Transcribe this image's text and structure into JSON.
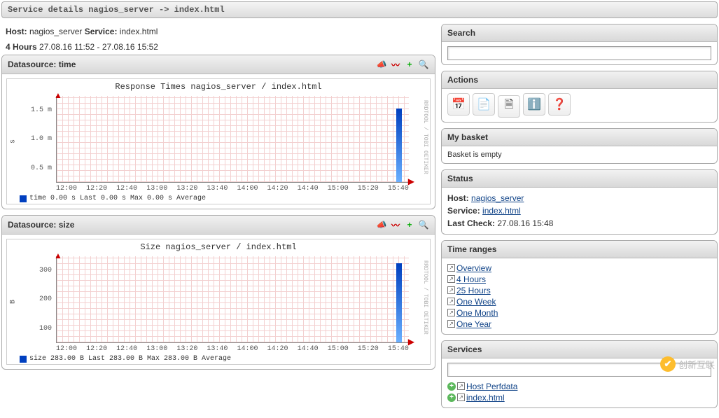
{
  "title_bar": "Service details nagios_server -> index.html",
  "header": {
    "host_label": "Host:",
    "host": "nagios_server",
    "service_label": "Service:",
    "service": "index.html",
    "range_label": "4 Hours",
    "range": "27.08.16 11:52 - 27.08.16 15:52"
  },
  "ds1": {
    "head": "Datasource: time",
    "title": "Response Times nagios_server / index.html",
    "ylabel": "s",
    "yticks": [
      "0.5 m",
      "1.0 m",
      "1.5 m"
    ],
    "xticks": [
      "12:00",
      "12:20",
      "12:40",
      "13:00",
      "13:20",
      "13:40",
      "14:00",
      "14:20",
      "14:40",
      "15:00",
      "15:20",
      "15:40"
    ],
    "bar_height_pct": 85,
    "bar_color_top": "#003fbf",
    "bar_color_bottom": "#6bb0ff",
    "legend": "time   0.00 s Last   0.00 s Max   0.00 s Average",
    "side": "RRDTOOL / TOBI OETIKER"
  },
  "ds2": {
    "head": "Datasource: size",
    "title": "Size nagios_server / index.html",
    "ylabel": "B",
    "yticks": [
      "100",
      "200",
      "300"
    ],
    "xticks": [
      "12:00",
      "12:20",
      "12:40",
      "13:00",
      "13:20",
      "13:40",
      "14:00",
      "14:20",
      "14:40",
      "15:00",
      "15:20",
      "15:40"
    ],
    "bar_height_pct": 92,
    "legend": "size  283.00  B Last  283.00  B Max  283.00  B Average",
    "side": "RRDTOOL / TOBI OETIKER"
  },
  "icons": {
    "mega": "📣",
    "wave": "〰",
    "plus": "+",
    "zoom": "🔍"
  },
  "search": {
    "head": "Search",
    "placeholder": ""
  },
  "actions": {
    "head": "Actions",
    "items": [
      {
        "name": "calendar-icon",
        "g": "📅"
      },
      {
        "name": "pdf-icon",
        "g": "📄"
      },
      {
        "name": "xml-icon",
        "g": "🗎"
      },
      {
        "name": "info-icon",
        "g": "ℹ️"
      },
      {
        "name": "help-icon",
        "g": "❓"
      }
    ]
  },
  "basket": {
    "head": "My basket",
    "text": "Basket is empty"
  },
  "status": {
    "head": "Status",
    "host_label": "Host:",
    "host": "nagios_server",
    "service_label": "Service:",
    "service": "index.html",
    "last_label": "Last Check:",
    "last": "27.08.16 15:48"
  },
  "timeranges": {
    "head": "Time ranges",
    "items": [
      "Overview",
      "4 Hours",
      "25 Hours",
      "One Week",
      "One Month",
      "One Year"
    ]
  },
  "services": {
    "head": "Services",
    "input_placeholder": "",
    "items": [
      "Host Perfdata",
      "index.html"
    ]
  },
  "watermark": "创新互联"
}
